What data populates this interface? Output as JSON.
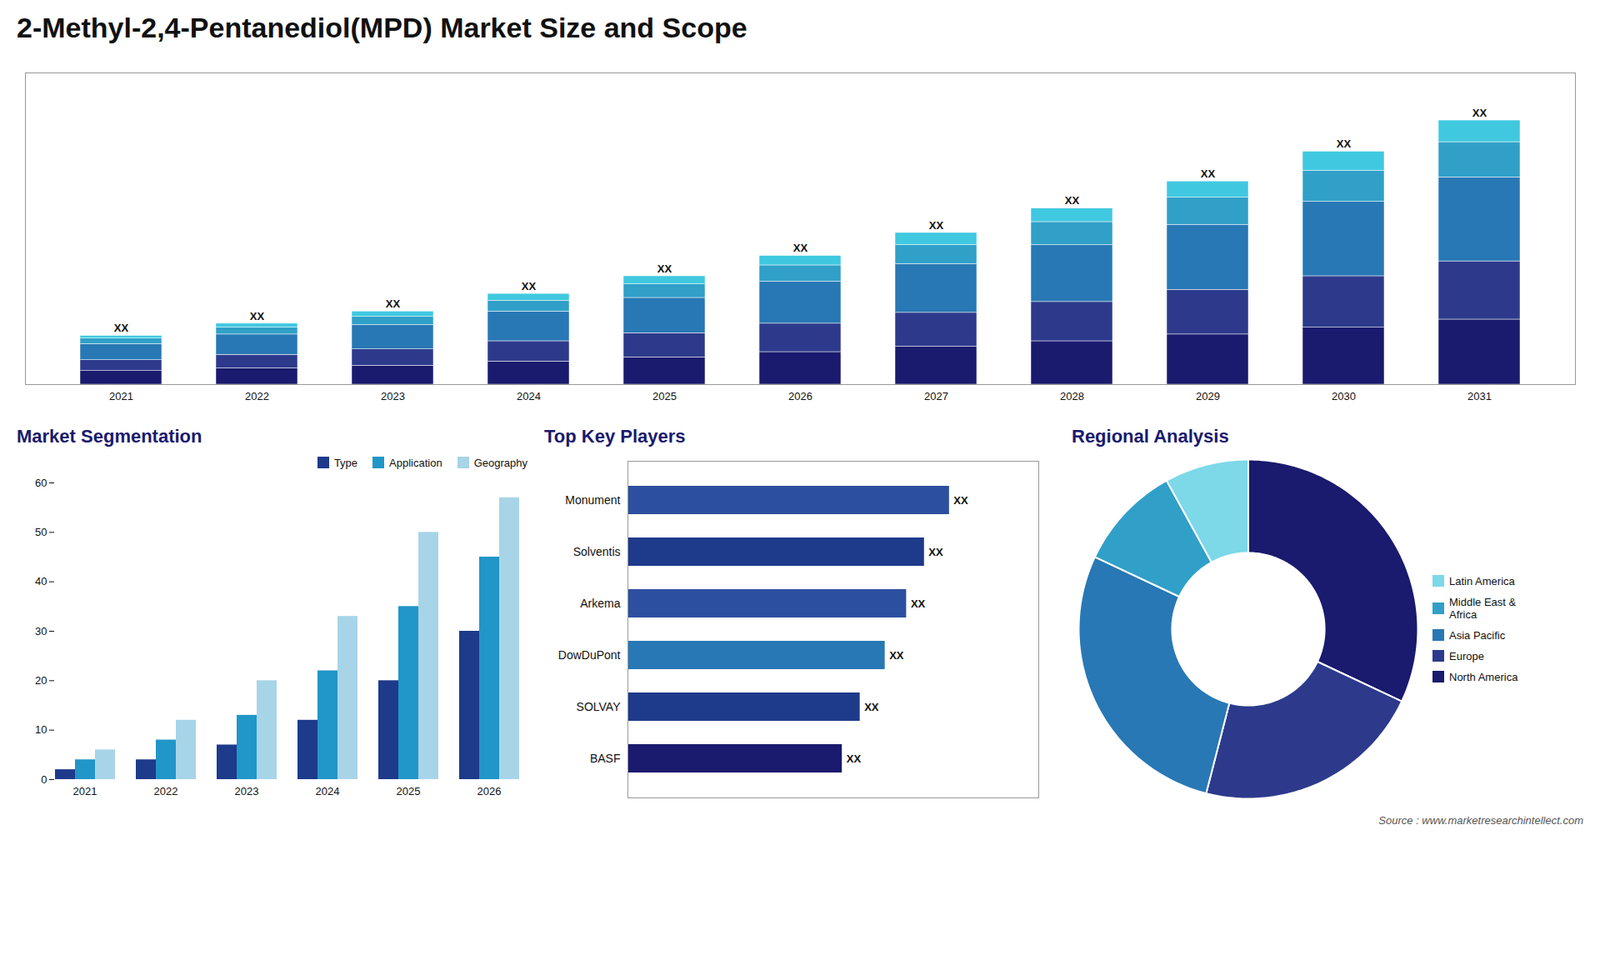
{
  "chart_data": [
    {
      "type": "bar",
      "title": "2-Methyl-2,4-Pentanediol(MPD) Market Size and Scope",
      "stacked": true,
      "categories": [
        "2021",
        "2022",
        "2023",
        "2024",
        "2025",
        "2026",
        "2027",
        "2028",
        "2029",
        "2030",
        "2031"
      ],
      "series": [
        {
          "name": "North America",
          "color": "#1a1a6e",
          "values": [
            1.0,
            1.2,
            1.4,
            1.7,
            2.0,
            2.4,
            2.8,
            3.2,
            3.7,
            4.2,
            4.8
          ]
        },
        {
          "name": "Europe",
          "color": "#2d3a8c",
          "values": [
            0.8,
            1.0,
            1.2,
            1.5,
            1.8,
            2.1,
            2.5,
            2.9,
            3.3,
            3.8,
            4.3
          ]
        },
        {
          "name": "Asia Pacific",
          "color": "#2878b5",
          "values": [
            1.2,
            1.5,
            1.8,
            2.2,
            2.6,
            3.1,
            3.6,
            4.2,
            4.8,
            5.5,
            6.2
          ]
        },
        {
          "name": "Middle East & Africa",
          "color": "#30a0c8",
          "values": [
            0.4,
            0.5,
            0.6,
            0.8,
            1.0,
            1.2,
            1.4,
            1.7,
            2.0,
            2.3,
            2.6
          ]
        },
        {
          "name": "Latin America",
          "color": "#40c8e0",
          "values": [
            0.2,
            0.3,
            0.4,
            0.5,
            0.6,
            0.7,
            0.9,
            1.0,
            1.2,
            1.4,
            1.6
          ]
        }
      ],
      "ylim": [
        0,
        23.01
      ],
      "tick_labels": "x",
      "annotations": [
        "XX",
        "XX",
        "XX",
        "XX",
        "XX",
        "XX",
        "XX",
        "XX",
        "XX",
        "XX",
        "XX"
      ]
    },
    {
      "type": "bar",
      "title": "Market Segmentation",
      "categories": [
        "2021",
        "2022",
        "2023",
        "2024",
        "2025",
        "2026"
      ],
      "series": [
        {
          "name": "Type",
          "color": "#1e3a8a",
          "values": [
            2,
            4,
            7,
            12,
            20,
            30
          ]
        },
        {
          "name": "Application",
          "color": "#2196c8",
          "values": [
            4,
            8,
            13,
            22,
            35,
            45
          ]
        },
        {
          "name": "Geography",
          "color": "#a8d4e8",
          "values": [
            6,
            12,
            20,
            33,
            50,
            57
          ]
        }
      ],
      "ylim": [
        0,
        60
      ],
      "yticks": [
        0,
        10,
        20,
        30,
        40,
        50,
        60
      ],
      "legend": "upper right"
    },
    {
      "type": "bar",
      "title": "Top Key Players",
      "orientation": "horizontal",
      "categories": [
        "Monument",
        "Solventis",
        "Arkema",
        "DowDuPont",
        "SOLVAY",
        "BASF"
      ],
      "values": [
        0.9,
        0.83,
        0.78,
        0.72,
        0.65,
        0.6
      ],
      "colors": [
        "#2d4fa0",
        "#1e3a8a",
        "#2d4fa0",
        "#2878b5",
        "#1e3a8a",
        "#1a1a6e"
      ],
      "xlim": [
        0,
        1.15
      ],
      "tick_labels": "y",
      "data_labels": true,
      "value_labels": [
        "XX",
        "XX",
        "XX",
        "XX",
        "XX",
        "XX"
      ]
    },
    {
      "type": "donut",
      "title": "Regional Analysis",
      "categories": [
        "North America",
        "Europe",
        "Asia Pacific",
        "Middle East &\nAfrica",
        "Latin America"
      ],
      "values": [
        32,
        22,
        28,
        10,
        8
      ],
      "colors": [
        "#1a1a6e",
        "#2d3a8c",
        "#2878b5",
        "#30a0c8",
        "#7dd8e8"
      ],
      "legend": "right",
      "annotations": [
        "Source : www.marketresearchintellect.com"
      ]
    }
  ]
}
